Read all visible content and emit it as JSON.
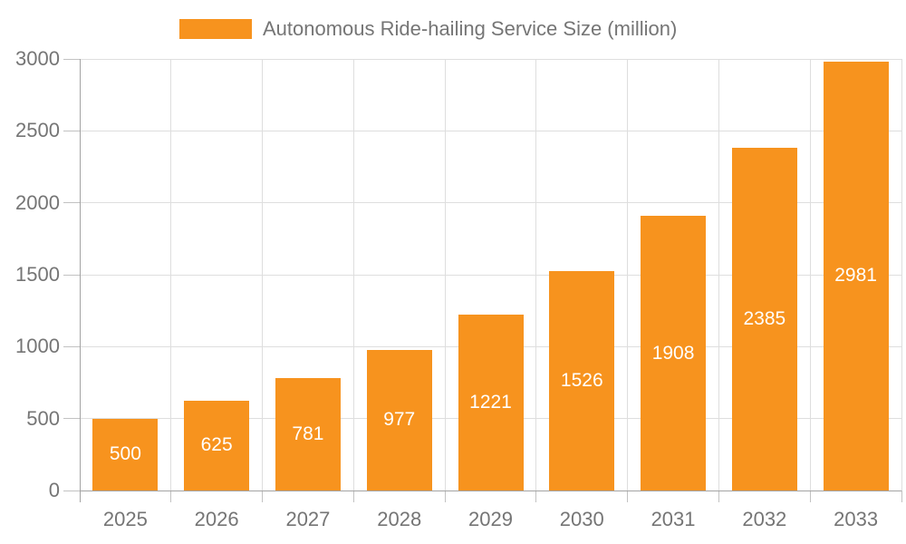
{
  "chart_data": {
    "type": "bar",
    "title": "Autonomous Ride-hailing Service Size (million)",
    "categories": [
      "2025",
      "2026",
      "2027",
      "2028",
      "2029",
      "2030",
      "2031",
      "2032",
      "2033"
    ],
    "values": [
      500,
      625,
      781,
      977,
      1221,
      1526,
      1908,
      2385,
      2981
    ],
    "series": [
      {
        "name": "Autonomous Ride-hailing Service Size (million)",
        "values": [
          500,
          625,
          781,
          977,
          1221,
          1526,
          1908,
          2385,
          2981
        ]
      }
    ],
    "xlabel": "",
    "ylabel": "",
    "ylim": [
      0,
      3000
    ],
    "yticks": [
      0,
      500,
      1000,
      1500,
      2000,
      2500,
      3000
    ],
    "grid": true,
    "legend_position": "top",
    "value_labels_position": "inside-center"
  },
  "style": {
    "bar_color": "#f7931e",
    "bar_label_color": "#ffffff",
    "axis_text_color": "#757575",
    "legend_text_color": "#757575",
    "grid_color": "#dedede",
    "axis_line_color": "#a3a3a3",
    "tick_color": "#c2c2c2",
    "background_color": "#ffffff"
  }
}
